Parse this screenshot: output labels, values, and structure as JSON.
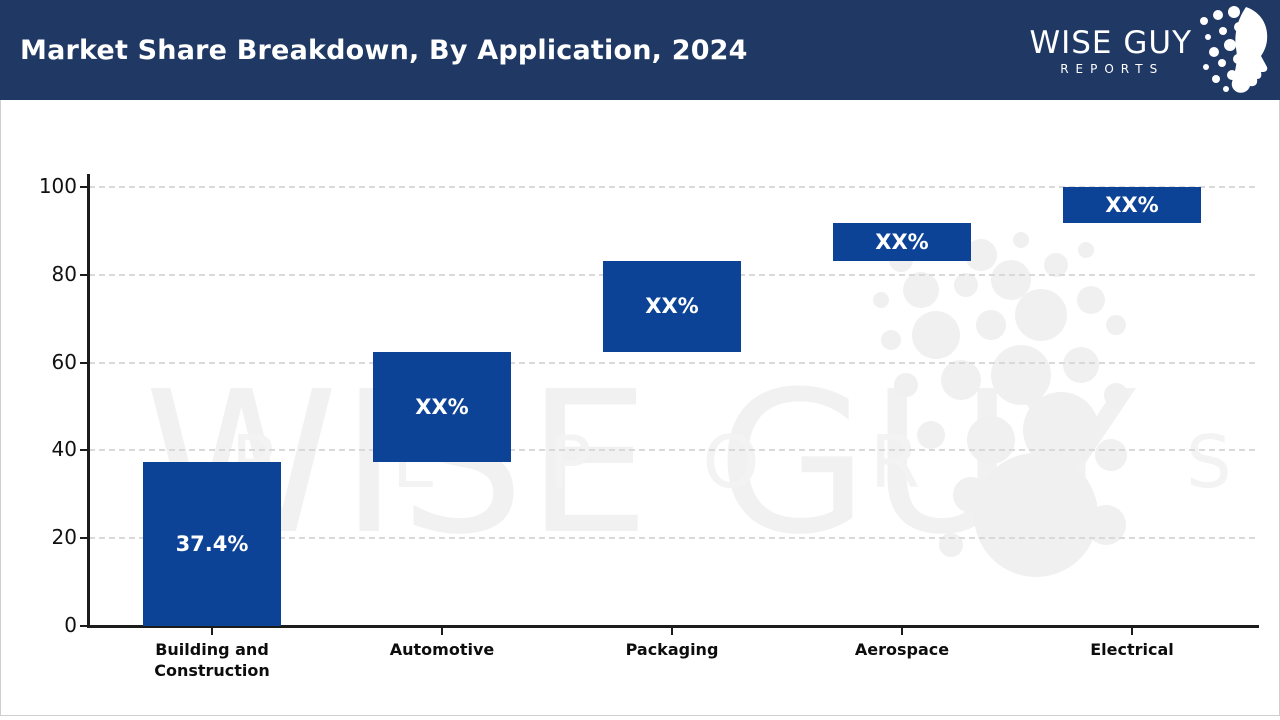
{
  "header": {
    "title": "Market Share Breakdown, By Application, 2024",
    "logo": {
      "name": "WISE GUY",
      "subtext": "REPORTS",
      "face_icon": "dotted-head-profile"
    }
  },
  "watermark": {
    "line1": "WISE GUY",
    "line2": "R E P O R T S",
    "face_icon": "dotted-head-profile"
  },
  "colors": {
    "header_bg": "#1f3864",
    "bar": "#0d4397",
    "grid": "#d9d9d9",
    "axis": "#1c1c1c",
    "watermark": "#f1f1f1",
    "bar_label_text": "#ffffff"
  },
  "chart_data": {
    "type": "bar",
    "variant": "waterfall",
    "title": "Market Share Breakdown, By Application, 2024",
    "categories": [
      "Building and\nConstruction",
      "Automotive",
      "Packaging",
      "Aerospace",
      "Electrical"
    ],
    "series": [
      {
        "name": "Market share (%)",
        "starts": [
          0,
          37.4,
          62.4,
          83.2,
          91.7
        ],
        "ends": [
          37.4,
          62.4,
          83.2,
          91.7,
          100
        ]
      }
    ],
    "bar_labels": [
      "37.4%",
      "XX%",
      "XX%",
      "XX%",
      "XX%"
    ],
    "xlabel": "",
    "ylabel": "",
    "ylim": [
      0,
      100
    ],
    "yticks": [
      0,
      20,
      40,
      60,
      80,
      100
    ],
    "grid": "horizontal-dashed",
    "legend": "none"
  }
}
